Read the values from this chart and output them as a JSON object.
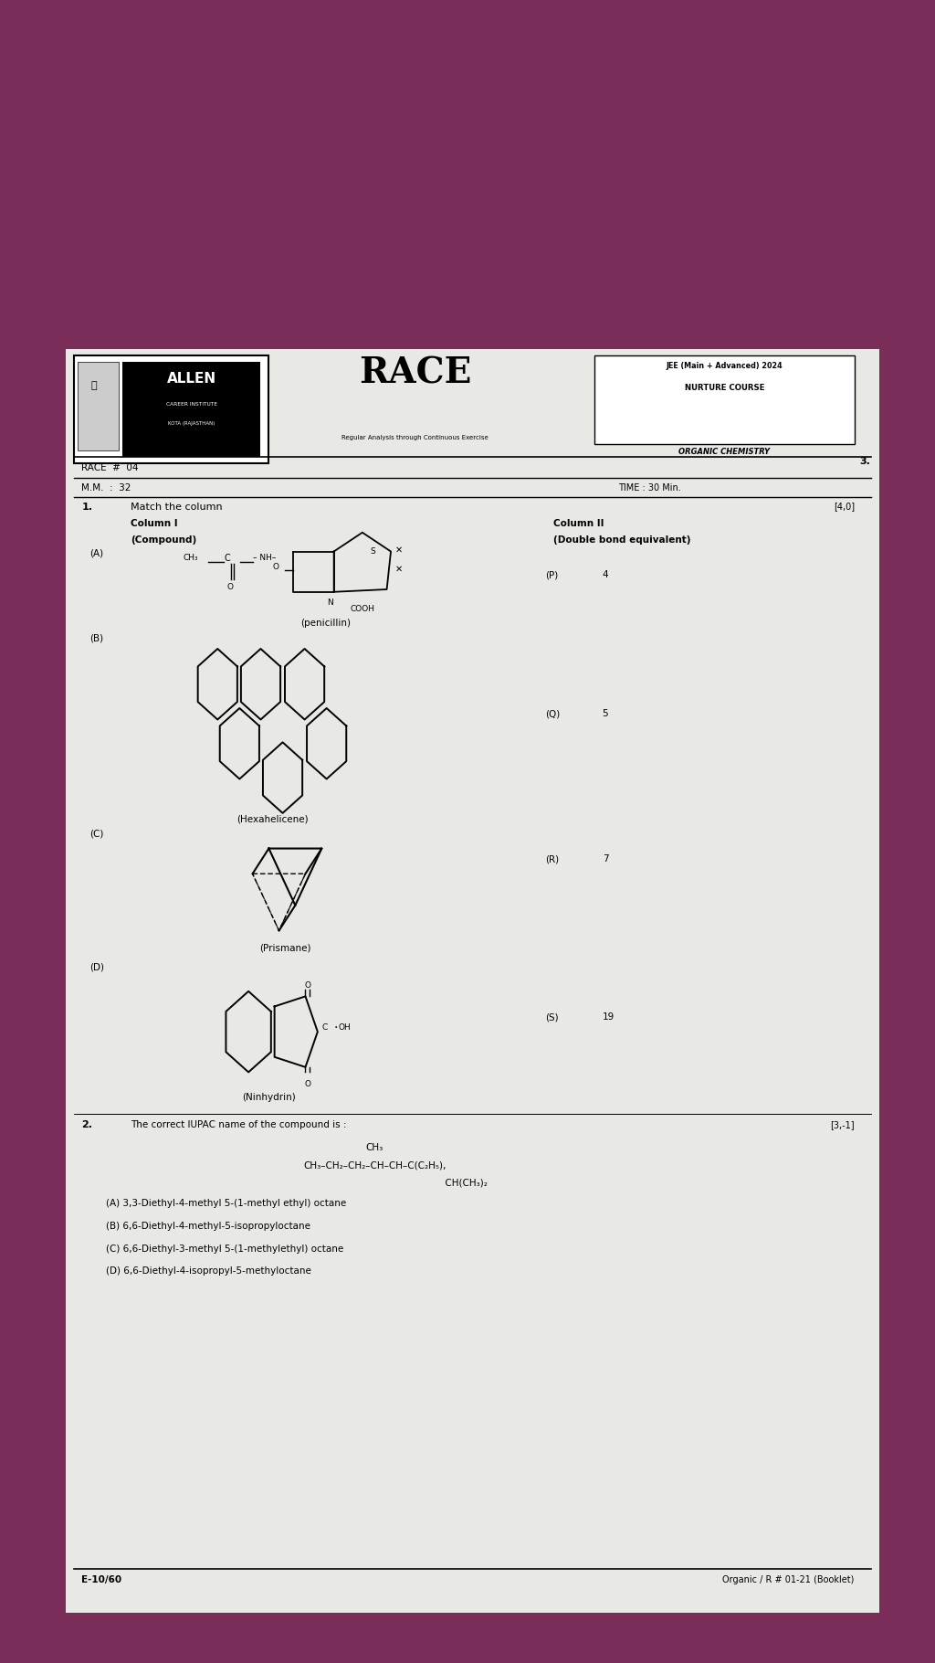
{
  "bg_color": "#7B2D5A",
  "paper_color": "#E8E8E4",
  "allen_line1": "ALLEN",
  "allen_line2": "CAREER INSTITUTE",
  "allen_line3": "KOTA (RAJASTHAN)",
  "race_big": "RACE",
  "race_sub": "Regular Analysis through Continuous Exercise",
  "jee_line1": "JEE (Main + Advanced) 2024",
  "jee_line2": "NURTURE COURSE",
  "organic": "ORGANIC CHEMISTRY",
  "race_no": "RACE  #  04",
  "mm": "M.M.  :  32",
  "time_text": "TIME : 30 Min.",
  "q1_num": "1.",
  "q1_text": "Match the column",
  "col1_h1": "Column I",
  "col1_h2": "(Compound)",
  "col2_h1": "Column II",
  "col2_h2": "(Double bond equivalent)",
  "marks1": "[4,0]",
  "labelA": "(A)",
  "nameA": "(penicillin)",
  "labelB": "(B)",
  "nameB": "(Hexahelicene)",
  "labelC": "(C)",
  "nameC": "(Prismane)",
  "labelD": "(D)",
  "nameD": "(Ninhydrin)",
  "P_label": "(P)",
  "P_val": "4",
  "Q_label": "(Q)",
  "Q_val": "5",
  "R_label": "(R)",
  "R_val": "7",
  "S_label": "(S)",
  "S_val": "19",
  "q2_num": "2.",
  "q2_text": "The correct IUPAC name of the compound is :",
  "marks2": "[3,-1]",
  "chem_line1": "CH₃",
  "chem_line2": "CH₃–CH₂–CH₂–CH–CH–C(C₂H₅),",
  "chem_line3": "         CH(CH₃)₂",
  "optA": "(A) 3,3-Diethyl-4-methyl 5-(1-methyl ethyl) octane",
  "optB": "(B) 6,6-Diethyl-4-methyl-5-isopropyloctane",
  "optC": "(C) 6,6-Diethyl-3-methyl 5-(1-methylethyl) octane",
  "optD": "(D) 6,6-Diethyl-4-isopropyl-5-methyloctane",
  "page_num": "3.",
  "footer_left": "E-10/60",
  "footer_right": "Organic / R # 01-21 (Booklet)"
}
